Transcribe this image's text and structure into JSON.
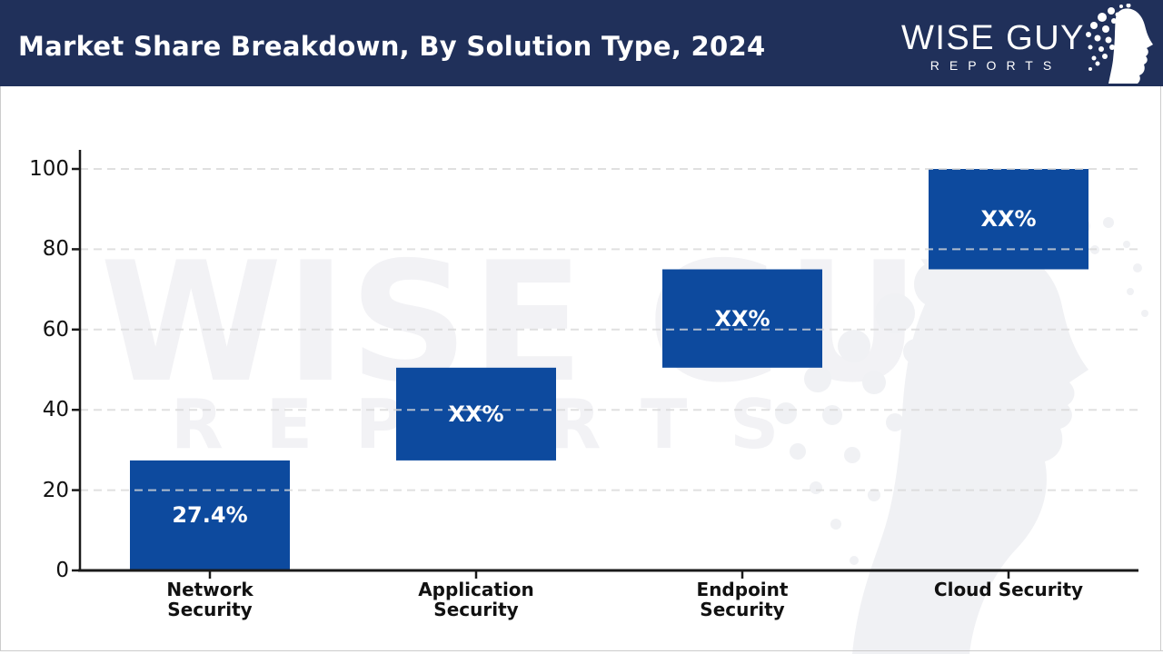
{
  "header": {
    "title": "Market Share Breakdown, By Solution Type, 2024",
    "bg_color": "#20305a",
    "logo": {
      "wordmark": "WISE GUY",
      "subtitle": "REPORTS"
    }
  },
  "watermark": {
    "wordmark": "WISE GUY",
    "subtitle": "REPORTS"
  },
  "chart_data": {
    "type": "bar",
    "subtype": "waterfall",
    "title": "Market Share Breakdown, By Solution Type, 2024",
    "categories": [
      "Network Security",
      "Application Security",
      "Endpoint Security",
      "Cloud Security"
    ],
    "segments": [
      {
        "category": "Network Security",
        "from": 0,
        "to": 27.4,
        "label": "27.4%"
      },
      {
        "category": "Application Security",
        "from": 27.4,
        "to": 50.5,
        "label": "XX%"
      },
      {
        "category": "Endpoint Security",
        "from": 50.5,
        "to": 75,
        "label": "XX%"
      },
      {
        "category": "Cloud Security",
        "from": 75,
        "to": 100,
        "label": "XX%"
      }
    ],
    "yticks": [
      0,
      20,
      40,
      60,
      80,
      100
    ],
    "ylim": [
      0,
      104
    ],
    "xlabel": "",
    "ylabel": "",
    "legend": "none",
    "grid": "horizontal-dashed",
    "bar_color": "#0d4a9e",
    "bar_label_color": "#ffffff",
    "axis_color": "#1a1a1a",
    "grid_color": "#d9d9d9"
  }
}
